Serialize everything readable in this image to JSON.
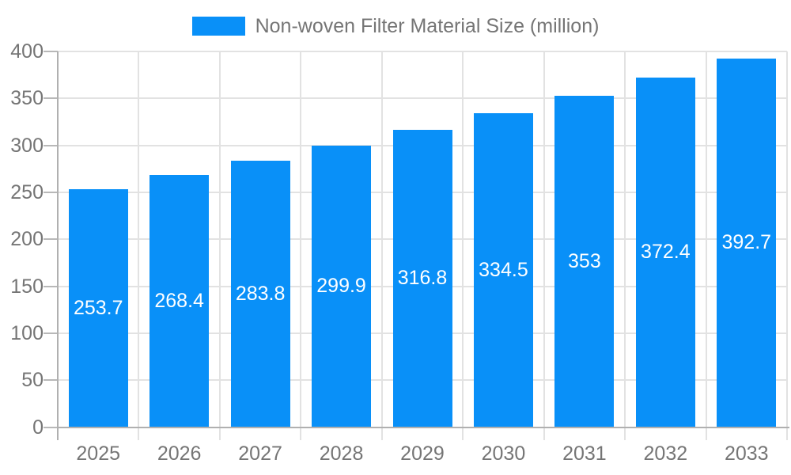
{
  "chart_data": {
    "type": "bar",
    "title": "",
    "series_name": "Non-woven Filter Material Size (million)",
    "categories": [
      "2025",
      "2026",
      "2027",
      "2028",
      "2029",
      "2030",
      "2031",
      "2032",
      "2033"
    ],
    "values": [
      253.7,
      268.4,
      283.8,
      299.9,
      316.8,
      334.5,
      353,
      372.4,
      392.7
    ],
    "xlabel": "",
    "ylabel": "",
    "ylim": [
      0,
      400
    ],
    "yticks": [
      0,
      50,
      100,
      150,
      200,
      250,
      300,
      350,
      400
    ],
    "grid": true,
    "legend_position": "top",
    "value_labels": "inside-center",
    "colors": {
      "bar": "#0990f8",
      "value_label": "#ffffff",
      "axis_text": "#757575",
      "legend_text": "#757575",
      "grid_line": "#e2e2e2",
      "axis_line": "#b0b0b0",
      "tick_line": "#b8b8b8",
      "background": "#ffffff"
    }
  }
}
